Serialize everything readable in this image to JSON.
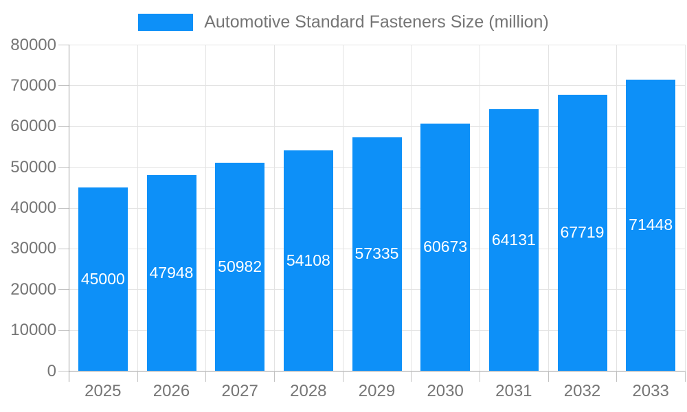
{
  "legend": {
    "series_label": "Automotive Standard Fasteners Size (million)"
  },
  "chart_data": {
    "type": "bar",
    "title": "Automotive Standard Fasteners Size (million)",
    "categories": [
      "2025",
      "2026",
      "2027",
      "2028",
      "2029",
      "2030",
      "2031",
      "2032",
      "2033"
    ],
    "values": [
      45000,
      47948,
      50982,
      54108,
      57335,
      60673,
      64131,
      67719,
      71448
    ],
    "xlabel": "",
    "ylabel": "",
    "ylim": [
      0,
      80000
    ],
    "ytick_step": 10000,
    "ytick_labels": [
      "0",
      "10000",
      "20000",
      "30000",
      "40000",
      "50000",
      "60000",
      "70000",
      "80000"
    ],
    "grid": "both",
    "legend_position": "top",
    "value_labels": "inside-center",
    "colors": {
      "bar": "#0d90f8",
      "value_label": "#ffffff",
      "axis_text": "#757575",
      "axis_line": "#9e9e9e",
      "tick_line": "#c2c2c2",
      "grid_line": "#e3e3e3",
      "background": "#ffffff"
    }
  }
}
